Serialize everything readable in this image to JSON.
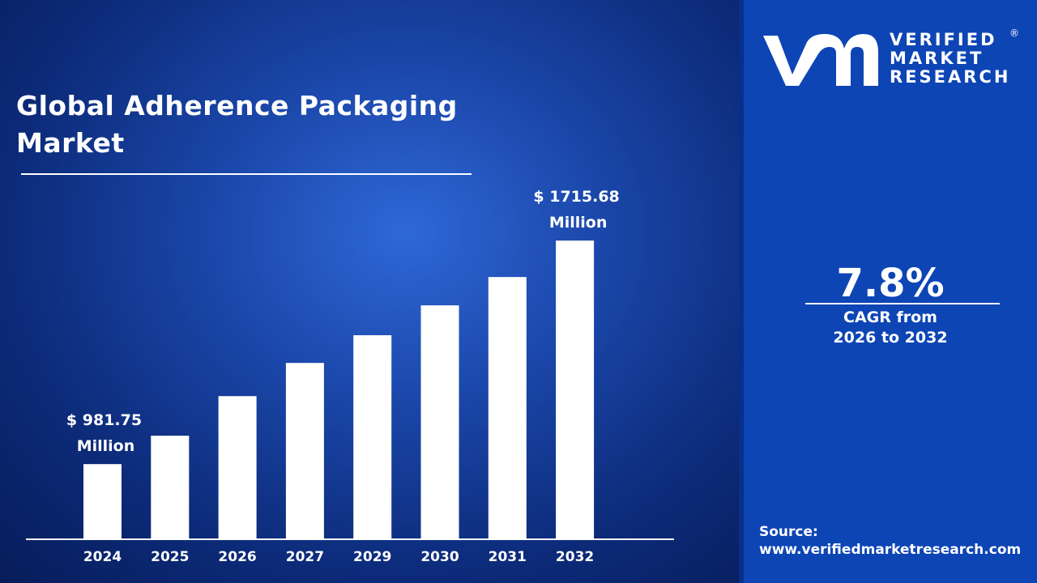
{
  "title": {
    "line1": "Global Adherence Packaging",
    "line2": "Market"
  },
  "logo": {
    "line1": "VERIFIED",
    "line2": "MARKET",
    "line3": "RESEARCH",
    "mark": "vmr",
    "registered": "®"
  },
  "cagr": {
    "value": "7.8%",
    "line1": "CAGR from",
    "line2": "2026 to 2032"
  },
  "source": {
    "label": "Source:",
    "url": "www.verifiedmarketresearch.com"
  },
  "colors": {
    "bar": "#ffffff",
    "panel": "#0d45b5",
    "background": "#0c2a78"
  },
  "chart_data": {
    "type": "bar",
    "title": "Global Adherence Packaging Market",
    "categories": [
      "2024",
      "2025",
      "2026",
      "2027",
      "2029",
      "2030",
      "2031",
      "2032"
    ],
    "values": [
      981.75,
      1075,
      1205,
      1314,
      1405,
      1503,
      1596,
      1715.68
    ],
    "unit": "$ Million",
    "annotations": [
      {
        "category": "2024",
        "line1": "$ 981.75",
        "line2": "Million"
      },
      {
        "category": "2032",
        "line1": "$ 1715.68",
        "line2": "Million"
      }
    ],
    "ylim": [
      735,
      1716
    ],
    "grid": false,
    "legend": "none"
  }
}
